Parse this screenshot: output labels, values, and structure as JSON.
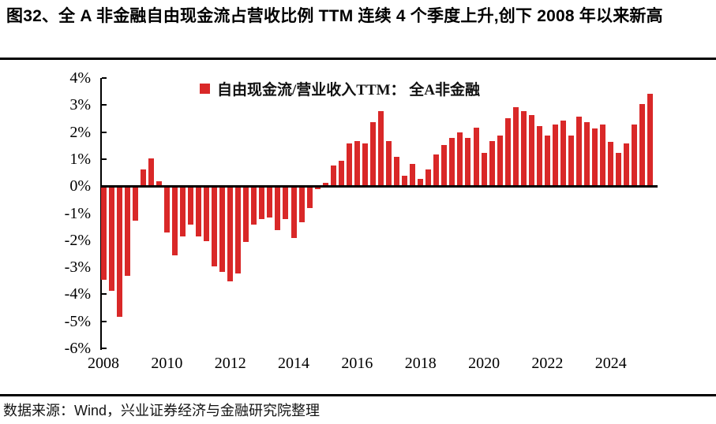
{
  "figure": {
    "title": "图32、全 A 非金融自由现金流占营收比例 TTM 连续 4 个季度上升,创下 2008 年以来新高",
    "source_note": "数据来源：Wind，兴业证券经济与金融研究院整理"
  },
  "legend": {
    "label": "自由现金流/营业收入TTM： 全A非金融",
    "marker_color": "#d92828"
  },
  "colors": {
    "bar": "#d92828",
    "axis": "#000000",
    "text": "#000000"
  },
  "chart_data": {
    "type": "bar",
    "title": "全A非金融自由现金流占营收比例TTM",
    "series_name": "自由现金流/营业收入TTM： 全A非金融",
    "xlabel": "",
    "ylabel": "%",
    "unit": "%",
    "ylim": [
      -6,
      4
    ],
    "grid": false,
    "legend_position": "top-center",
    "bar_color": "#d92828",
    "yticks": [
      {
        "label": "4%",
        "value": 4
      },
      {
        "label": "3%",
        "value": 3
      },
      {
        "label": "2%",
        "value": 2
      },
      {
        "label": "1%",
        "value": 1
      },
      {
        "label": "0%",
        "value": 0
      },
      {
        "label": "-1%",
        "value": -1
      },
      {
        "label": "-2%",
        "value": -2
      },
      {
        "label": "-3%",
        "value": -3
      },
      {
        "label": "-4%",
        "value": -4
      },
      {
        "label": "-5%",
        "value": -5
      },
      {
        "label": "-6%",
        "value": -6
      }
    ],
    "xticks": [
      {
        "label": "2008",
        "index": 0
      },
      {
        "label": "2010",
        "index": 8
      },
      {
        "label": "2012",
        "index": 16
      },
      {
        "label": "2014",
        "index": 24
      },
      {
        "label": "2016",
        "index": 32
      },
      {
        "label": "2018",
        "index": 40
      },
      {
        "label": "2020",
        "index": 48
      },
      {
        "label": "2022",
        "index": 56
      },
      {
        "label": "2024",
        "index": 64
      }
    ],
    "x": [
      "2008Q1",
      "2008Q2",
      "2008Q3",
      "2008Q4",
      "2009Q1",
      "2009Q2",
      "2009Q3",
      "2009Q4",
      "2010Q1",
      "2010Q2",
      "2010Q3",
      "2010Q4",
      "2011Q1",
      "2011Q2",
      "2011Q3",
      "2011Q4",
      "2012Q1",
      "2012Q2",
      "2012Q3",
      "2012Q4",
      "2013Q1",
      "2013Q2",
      "2013Q3",
      "2013Q4",
      "2014Q1",
      "2014Q2",
      "2014Q3",
      "2014Q4",
      "2015Q1",
      "2015Q2",
      "2015Q3",
      "2015Q4",
      "2016Q1",
      "2016Q2",
      "2016Q3",
      "2016Q4",
      "2017Q1",
      "2017Q2",
      "2017Q3",
      "2017Q4",
      "2018Q1",
      "2018Q2",
      "2018Q3",
      "2018Q4",
      "2019Q1",
      "2019Q2",
      "2019Q3",
      "2019Q4",
      "2020Q1",
      "2020Q2",
      "2020Q3",
      "2020Q4",
      "2021Q1",
      "2021Q2",
      "2021Q3",
      "2021Q4",
      "2022Q1",
      "2022Q2",
      "2022Q3",
      "2022Q4",
      "2023Q1",
      "2023Q2",
      "2023Q3",
      "2023Q4",
      "2024Q1",
      "2024Q2",
      "2024Q3",
      "2024Q4",
      "2025Q1",
      "2025Q2"
    ],
    "values": [
      -3.45,
      -3.85,
      -4.8,
      -3.3,
      -1.25,
      0.65,
      1.05,
      0.2,
      -1.7,
      -2.55,
      -1.85,
      -1.4,
      -1.85,
      -2.0,
      -2.95,
      -3.15,
      -3.5,
      -3.2,
      -2.05,
      -1.4,
      -1.2,
      -1.15,
      -1.6,
      -1.2,
      -1.9,
      -1.3,
      -0.8,
      -0.1,
      0.15,
      0.8,
      0.95,
      1.6,
      1.7,
      1.6,
      2.4,
      2.8,
      1.7,
      1.1,
      0.4,
      0.85,
      0.3,
      0.65,
      1.2,
      1.55,
      1.8,
      2.0,
      1.8,
      2.2,
      1.25,
      1.7,
      1.9,
      2.55,
      2.95,
      2.8,
      2.65,
      2.25,
      1.9,
      2.3,
      2.45,
      1.9,
      2.6,
      2.4,
      2.15,
      2.3,
      1.65,
      1.25,
      1.6,
      2.3,
      3.05,
      3.45
    ]
  }
}
